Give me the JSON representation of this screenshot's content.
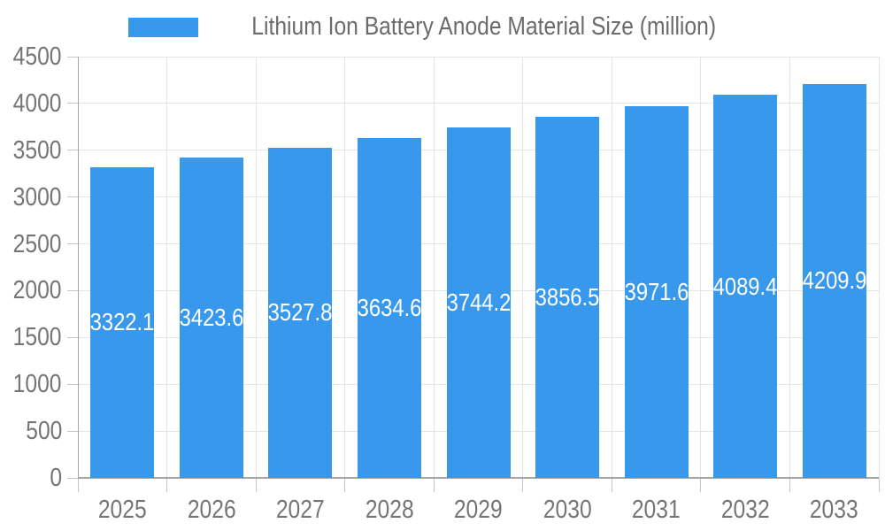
{
  "chart_data": {
    "type": "bar",
    "title": "Lithium Ion Battery Anode Material Size (million)",
    "legend_position": "top",
    "categories": [
      "2025",
      "2026",
      "2027",
      "2028",
      "2029",
      "2030",
      "2031",
      "2032",
      "2033"
    ],
    "values": [
      3322.1,
      3423.6,
      3527.8,
      3634.6,
      3744.2,
      3856.5,
      3971.6,
      4089.4,
      4209.9
    ],
    "value_labels": [
      "3322.1",
      "3423.6",
      "3527.8",
      "3634.6",
      "3744.2",
      "3856.5",
      "3971.6",
      "4089.4",
      "4209.9"
    ],
    "xlabel": "",
    "ylabel": "",
    "ylim": [
      0,
      4500
    ],
    "ytick_step": 500,
    "yticks": [
      "0",
      "500",
      "1000",
      "1500",
      "2000",
      "2500",
      "3000",
      "3500",
      "4000",
      "4500"
    ],
    "grid": true,
    "colors": {
      "bar": "#3898EC",
      "grid": "#E5E5E5",
      "axis": "#A6A6A6",
      "tick": "#C6C6C6",
      "tick_label": "#757575",
      "legend_text": "#6B6B6B",
      "value_label": "#FFFFFF"
    }
  }
}
